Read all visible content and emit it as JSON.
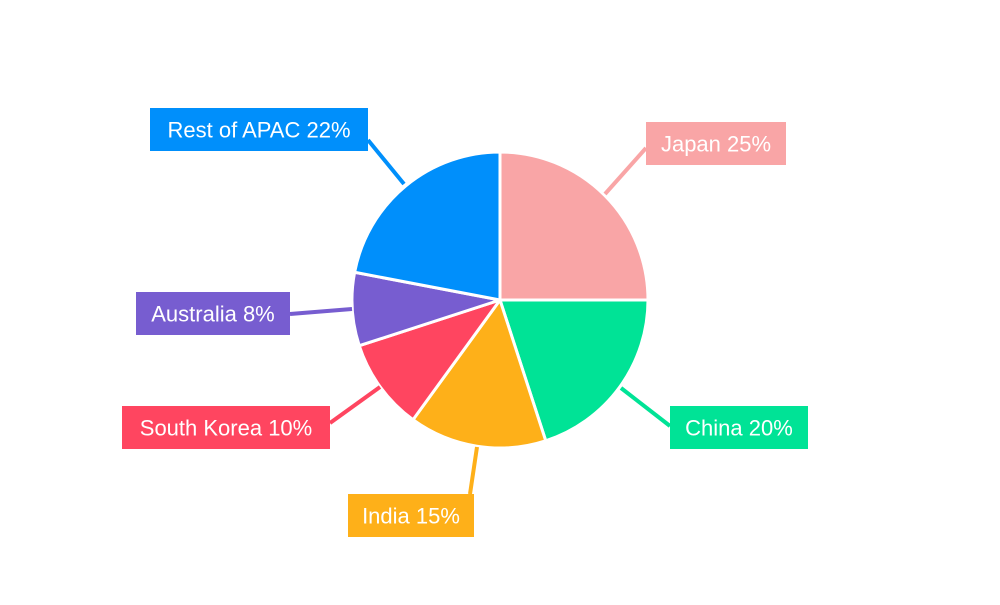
{
  "chart_data": {
    "type": "pie",
    "title": "",
    "slices": [
      {
        "label": "Japan",
        "value": 25,
        "display": "Japan 25%",
        "color": "#F9A5A6"
      },
      {
        "label": "China",
        "value": 20,
        "display": "China 20%",
        "color": "#00E396"
      },
      {
        "label": "India",
        "value": 15,
        "display": "India 15%",
        "color": "#FEB019"
      },
      {
        "label": "South Korea",
        "value": 10,
        "display": "South Korea 10%",
        "color": "#FF4560"
      },
      {
        "label": "Australia",
        "value": 8,
        "display": "Australia 8%",
        "color": "#775DD0"
      },
      {
        "label": "Rest of APAC",
        "value": 22,
        "display": "Rest of APAC 22%",
        "color": "#008FFB"
      }
    ],
    "start_angle": "12 o'clock",
    "direction": "clockwise",
    "legend": "none",
    "label_style": "callout boxes with leader lines",
    "label_text_color": "#ffffff",
    "slice_border_color": "#ffffff"
  }
}
